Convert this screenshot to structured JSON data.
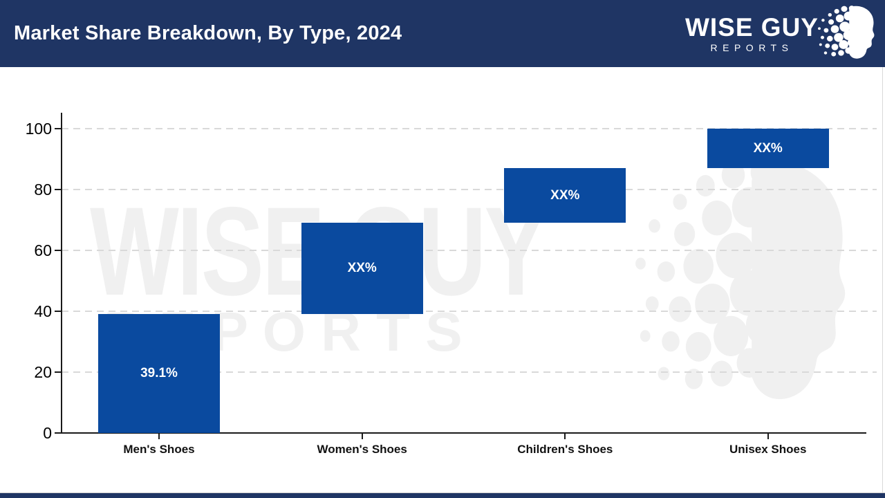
{
  "header": {
    "title": "Market Share Breakdown, By Type, 2024",
    "logo": {
      "primary": "WISE GUY",
      "secondary": "REPORTS"
    }
  },
  "watermark": {
    "primary": "WISE GUY",
    "secondary": "R E P O R T S"
  },
  "chart_data": {
    "type": "bar",
    "subtype": "waterfall",
    "title": "Market Share Breakdown, By Type, 2024",
    "categories": [
      "Men's Shoes",
      "Women's Shoes",
      "Children's Shoes",
      "Unisex Shoes"
    ],
    "segments": [
      {
        "category": "Men's Shoes",
        "start": 0,
        "end": 39.1,
        "label": "39.1%"
      },
      {
        "category": "Women's Shoes",
        "start": 39.1,
        "end": 69,
        "label": "XX%"
      },
      {
        "category": "Children's Shoes",
        "start": 69,
        "end": 87,
        "label": "XX%"
      },
      {
        "category": "Unisex Shoes",
        "start": 87,
        "end": 100,
        "label": "XX%"
      }
    ],
    "yticks": [
      0,
      20,
      40,
      60,
      80,
      100
    ],
    "ylim": [
      0,
      105
    ],
    "xlabel": "",
    "ylabel": "",
    "grid": "horizontal-dashed",
    "legend": "none"
  },
  "colors": {
    "header_bg": "#1f3564",
    "footer_bg": "#1f3564",
    "bar": "#0a4a9f",
    "bar_label": "#ffffff",
    "grid": "#d9d9d9",
    "axis": "#1a1a1a",
    "watermark": "#f0f0f0"
  }
}
